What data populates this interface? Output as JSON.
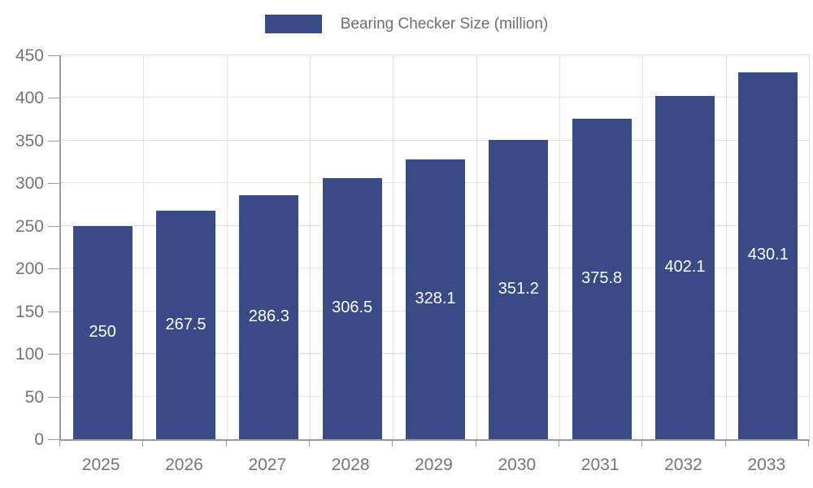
{
  "legend": {
    "label": "Bearing Checker Size (million)",
    "swatch_color": "#3a4a87"
  },
  "chart_data": {
    "type": "bar",
    "title": "",
    "xlabel": "",
    "ylabel": "",
    "categories": [
      "2025",
      "2026",
      "2027",
      "2028",
      "2029",
      "2030",
      "2031",
      "2032",
      "2033"
    ],
    "series": [
      {
        "name": "Bearing Checker Size (million)",
        "values": [
          250,
          267.5,
          286.3,
          306.5,
          328.1,
          351.2,
          375.8,
          402.1,
          430.1
        ]
      }
    ],
    "value_labels": [
      "250",
      "267.5",
      "286.3",
      "306.5",
      "328.1",
      "351.2",
      "375.8",
      "402.1",
      "430.1"
    ],
    "ytick_labels": [
      "0",
      "50",
      "100",
      "150",
      "200",
      "250",
      "300",
      "350",
      "400",
      "450"
    ],
    "ylim": [
      0,
      450
    ],
    "ytick_step": 50,
    "grid": true,
    "legend_position": "top",
    "colors": {
      "bar": "#3a4a87",
      "value_label": "#ffffff",
      "axis_line": "#9c9c9c",
      "grid_line": "#e2e2e7",
      "tick_label": "#757575",
      "legend_text": "#6e6e6e"
    }
  }
}
